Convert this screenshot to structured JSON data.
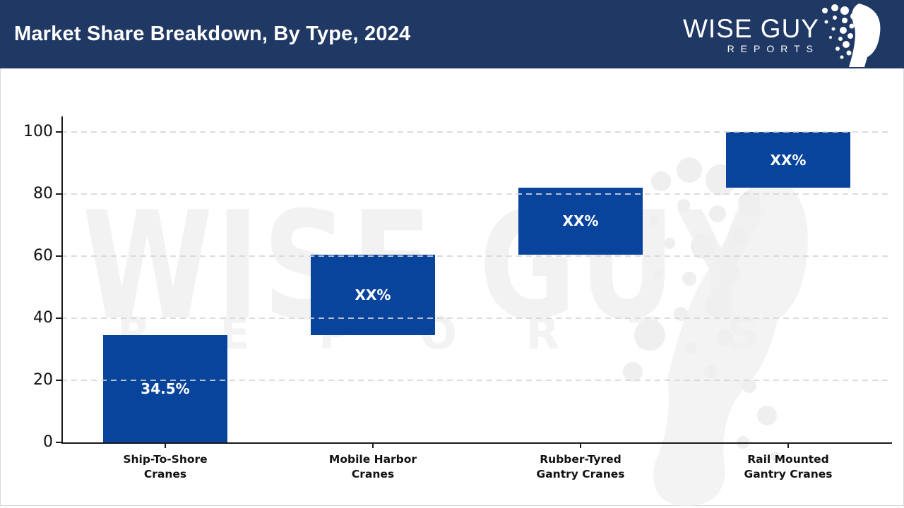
{
  "header": {
    "title": "Market Share Breakdown, By Type, 2024",
    "logo": {
      "line1": "WISE GUY",
      "line2": "REPORTS"
    }
  },
  "watermark": {
    "line1": "WISE GUY",
    "line2": "R E P O R T S"
  },
  "colors": {
    "header_bg": "#203864",
    "bar_blue": "#08449c",
    "watermark_gray": "#efefef",
    "grid_gray": "#d6d6d6",
    "axis_black": "#1a1a1a"
  },
  "chart_data": {
    "type": "bar",
    "subtype": "stacked-waterfall",
    "title": "Market Share Breakdown, By Type, 2024",
    "categories": [
      [
        "Ship-To-Shore",
        "Cranes"
      ],
      [
        "Mobile Harbor",
        "Cranes"
      ],
      [
        "Rubber-Tyred",
        "Gantry Cranes"
      ],
      [
        "Rail Mounted",
        "Gantry Cranes"
      ]
    ],
    "segments": [
      {
        "start": 0,
        "end": 34.5,
        "label": "34.5%"
      },
      {
        "start": 34.5,
        "end": 60.5,
        "label": "XX%"
      },
      {
        "start": 60.5,
        "end": 82,
        "label": "XX%"
      },
      {
        "start": 82,
        "end": 100,
        "label": "XX%"
      }
    ],
    "yticks": [
      0,
      20,
      40,
      60,
      80,
      100
    ],
    "ylim": [
      0,
      105
    ],
    "xlabel": "",
    "ylabel": "",
    "grid": "horizontal-dashed",
    "legend": "none",
    "bar_color": "#08449c",
    "label_color": "#ffffff"
  }
}
